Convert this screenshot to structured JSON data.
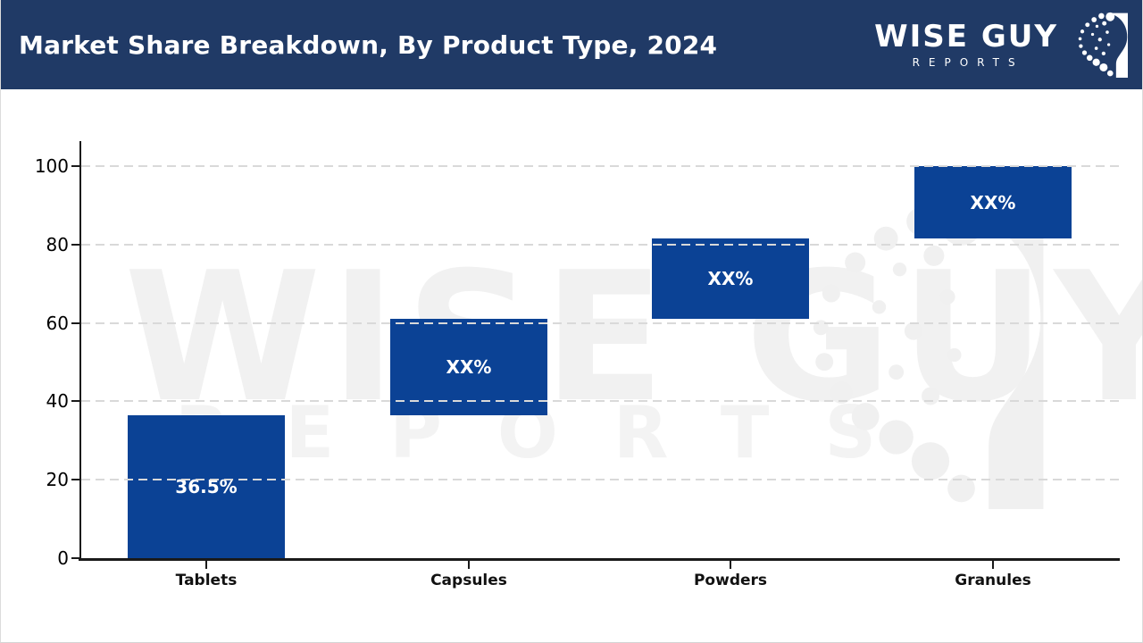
{
  "header": {
    "title": "Market Share Breakdown, By Product Type, 2024",
    "logo_line1": "WISE GUY",
    "logo_line2": "REPORTS"
  },
  "watermark": {
    "line1": "WISE GUY",
    "line2": "REPORTS"
  },
  "chart_data": {
    "type": "bar",
    "subtype": "waterfall",
    "title": "Market Share Breakdown, By Product Type, 2024",
    "categories": [
      "Tablets",
      "Capsules",
      "Powders",
      "Granules"
    ],
    "segments": [
      {
        "category": "Tablets",
        "start": 0,
        "end": 36.5,
        "label": "36.5%"
      },
      {
        "category": "Capsules",
        "start": 36.5,
        "end": 61,
        "label": "XX%"
      },
      {
        "category": "Powders",
        "start": 61,
        "end": 81.5,
        "label": "XX%"
      },
      {
        "category": "Granules",
        "start": 81.5,
        "end": 100,
        "label": "XX%"
      }
    ],
    "y_ticks": [
      0,
      20,
      40,
      60,
      80,
      100
    ],
    "ylim": [
      0,
      105
    ],
    "xlabel": "",
    "ylabel": "",
    "grid": "horizontal-dashed",
    "legend": "none",
    "bar_color": "#0b4295",
    "bar_label_color": "#ffffff"
  },
  "colors": {
    "header_bg": "#203a66",
    "bar": "#0b4295",
    "axis": "#1a1a1a",
    "grid": "#d9d9d9",
    "watermark": "#f1f1f1"
  }
}
